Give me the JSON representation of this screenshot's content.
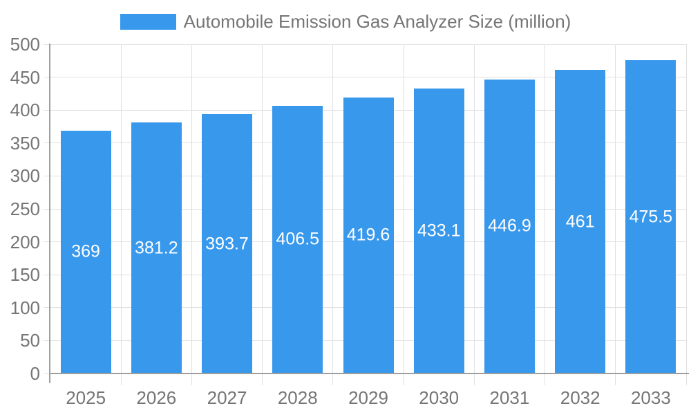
{
  "legend": {
    "swatch_color": "#3898ec",
    "label": "Automobile Emission Gas Analyzer Size (million)"
  },
  "chart_data": {
    "type": "bar",
    "title": "Automobile Emission Gas Analyzer Size (million)",
    "categories": [
      "2025",
      "2026",
      "2027",
      "2028",
      "2029",
      "2030",
      "2031",
      "2032",
      "2033"
    ],
    "values": [
      369,
      381.2,
      393.7,
      406.5,
      419.6,
      433.1,
      446.9,
      461,
      475.5
    ],
    "bar_labels": [
      "369",
      "381.2",
      "393.7",
      "406.5",
      "419.6",
      "433.1",
      "446.9",
      "461",
      "475.5"
    ],
    "xlabel": "",
    "ylabel": "",
    "ylim": [
      0,
      500
    ],
    "ytick_step": 50,
    "ytick_labels": [
      "0",
      "50",
      "100",
      "150",
      "200",
      "250",
      "300",
      "350",
      "400",
      "450",
      "500"
    ],
    "grid": true,
    "legend_position": "top",
    "bar_color": "#3898ec",
    "value_label_color": "#ffffff",
    "axis_text_color": "#757575",
    "grid_color": "#e0e0e0",
    "axis_line_color": "#9e9e9e"
  }
}
